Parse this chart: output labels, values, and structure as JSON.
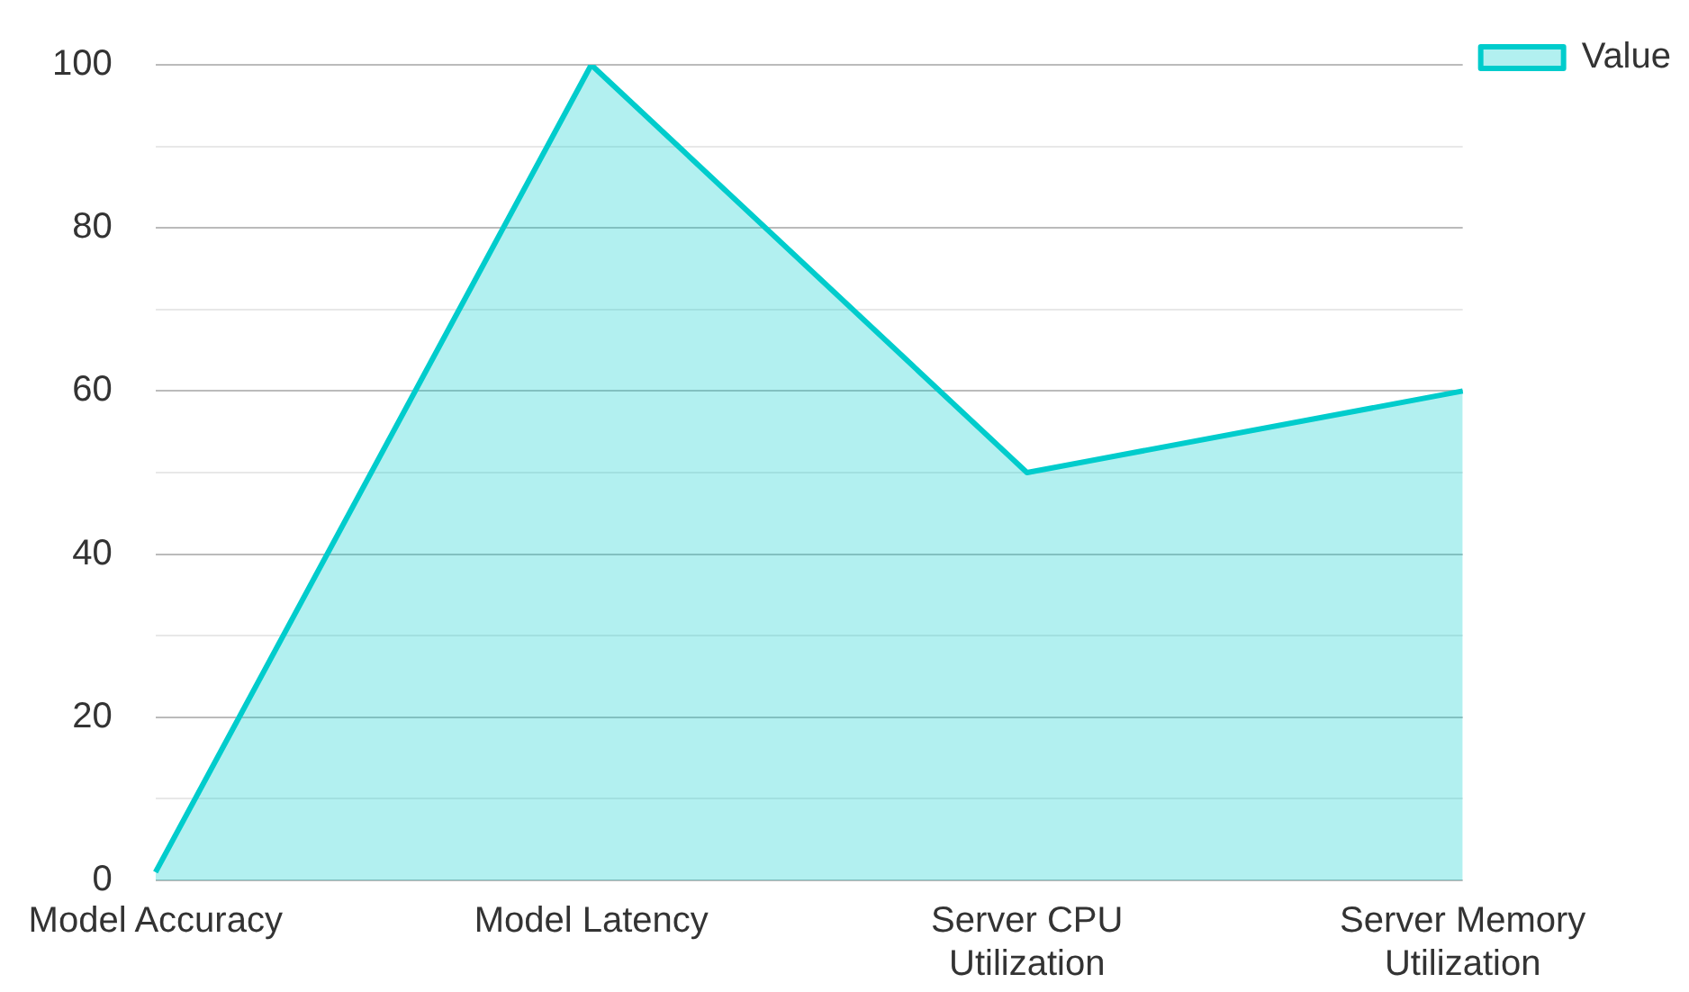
{
  "chart_data": {
    "type": "area",
    "categories": [
      "Model Accuracy",
      "Model Latency",
      "Server CPU Utilization",
      "Server Memory Utilization"
    ],
    "series": [
      {
        "name": "Value",
        "color": "#00cccc",
        "values": [
          1,
          100,
          50,
          60
        ]
      }
    ],
    "ylim": [
      0,
      100
    ],
    "yticks": [
      0,
      {
        "value": 10,
        "label": null
      },
      20,
      {
        "value": 30,
        "label": null
      },
      40,
      {
        "value": 50,
        "label": null
      },
      60,
      {
        "value": 70,
        "label": null
      },
      80,
      {
        "value": 90,
        "label": null
      },
      100
    ],
    "grid": "y",
    "legend": "top right"
  }
}
